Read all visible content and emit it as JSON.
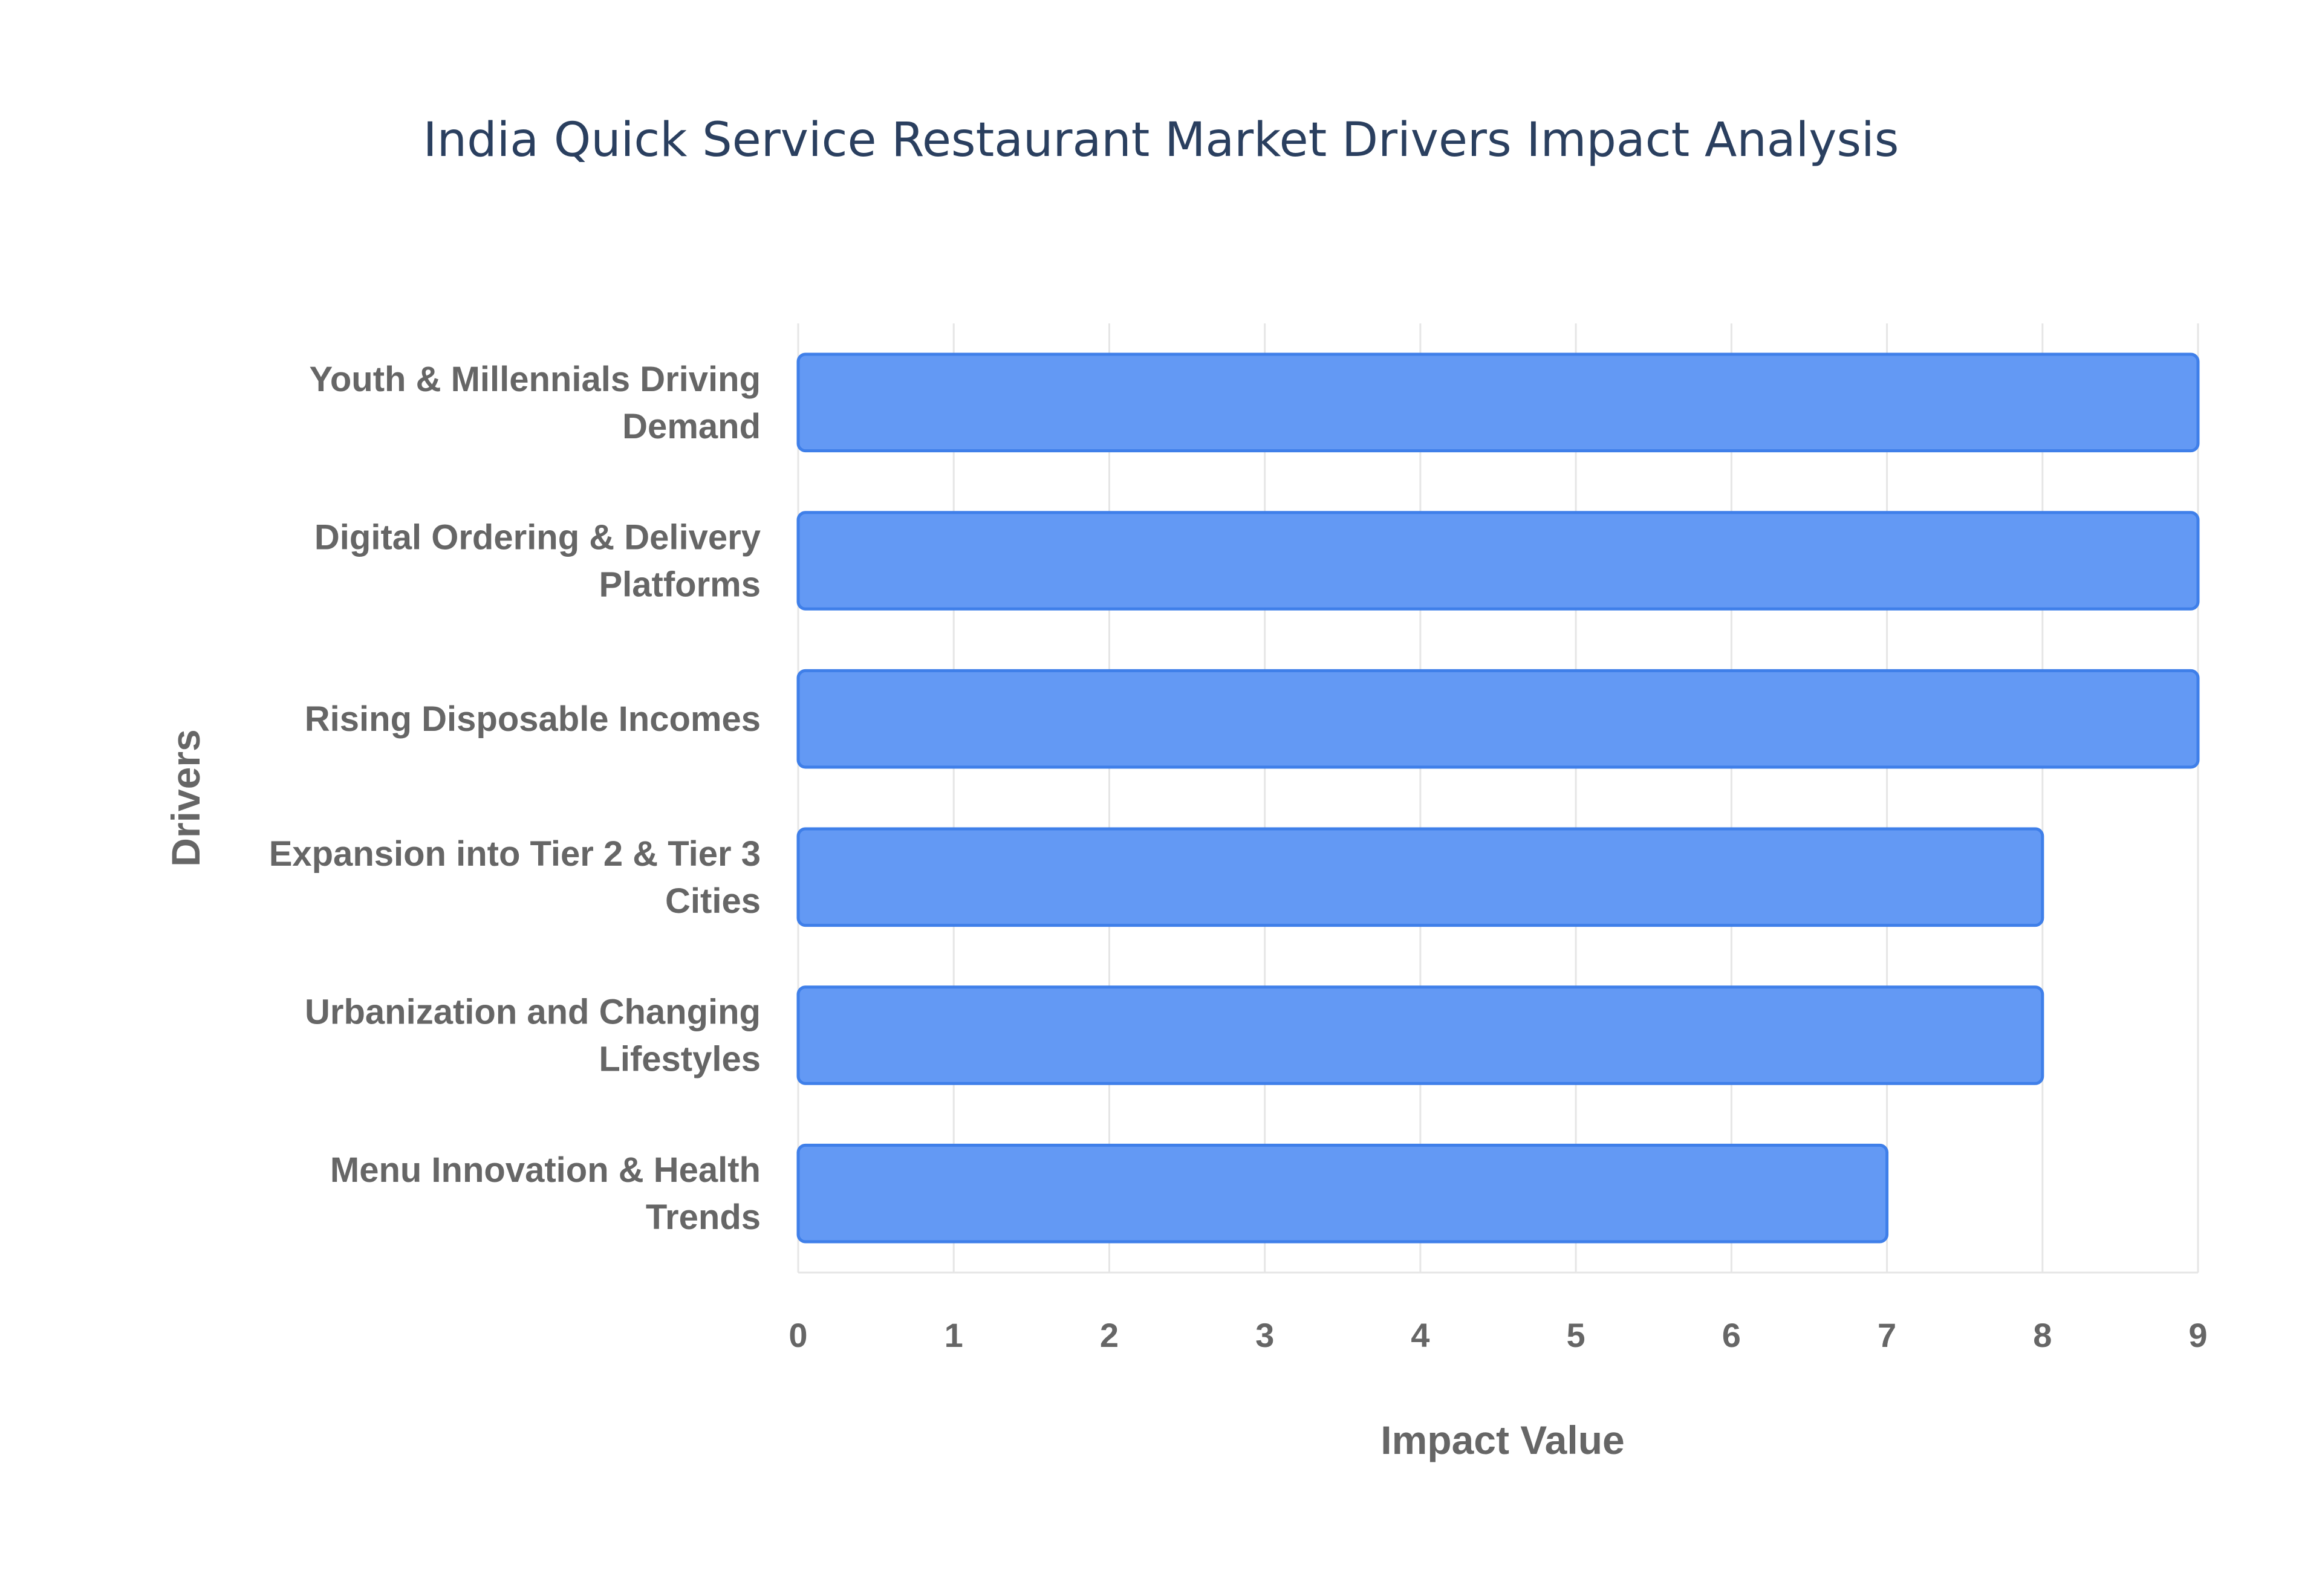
{
  "chart_data": {
    "type": "bar",
    "orientation": "horizontal",
    "title": "India Quick Service Restaurant Market Drivers Impact Analysis",
    "xlabel": "Impact Value",
    "ylabel": "Drivers",
    "xlim": [
      0,
      9
    ],
    "xticks": [
      "0",
      "1",
      "2",
      "3",
      "4",
      "5",
      "6",
      "7",
      "8",
      "9"
    ],
    "grid": true,
    "bar_color": "#6399f4",
    "bar_edge_color": "#3f7fe9",
    "categories": [
      [
        "Youth & Millennials Driving",
        "Demand"
      ],
      [
        "Digital Ordering & Delivery",
        "Platforms"
      ],
      [
        "Rising Disposable Incomes"
      ],
      [
        "Expansion into Tier 2 & Tier 3",
        "Cities"
      ],
      [
        "Urbanization and Changing",
        "Lifestyles"
      ],
      [
        "Menu Innovation & Health",
        "Trends"
      ]
    ],
    "values": [
      9,
      9,
      9,
      8,
      8,
      7
    ]
  }
}
